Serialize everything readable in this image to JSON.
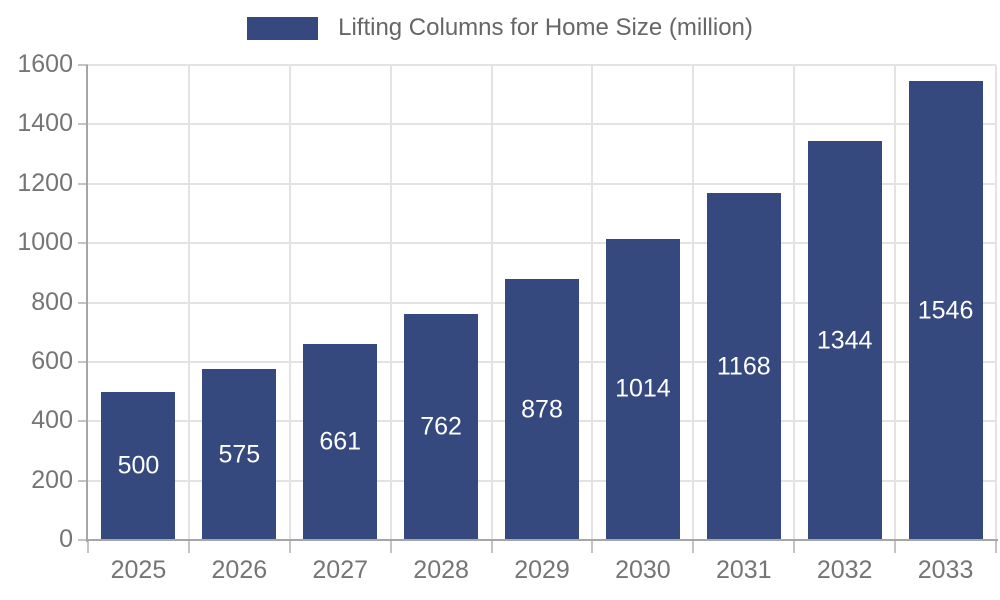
{
  "chart_data": {
    "type": "bar",
    "title": "Lifting Columns for Home Size (million)",
    "legend_entries": [
      "Lifting Columns for Home Size (million)"
    ],
    "legend_position": "top-center",
    "categories": [
      "2025",
      "2026",
      "2027",
      "2028",
      "2029",
      "2030",
      "2031",
      "2032",
      "2033"
    ],
    "values": [
      500,
      575,
      661,
      762,
      878,
      1014,
      1168,
      1344,
      1546
    ],
    "data_label_position": "inside-center",
    "xlabel": "",
    "ylabel": "",
    "ylim": [
      0,
      1600
    ],
    "y_ticks": [
      0,
      200,
      400,
      600,
      800,
      1000,
      1200,
      1400,
      1600
    ],
    "grid": true,
    "colors": {
      "bar": "#36497F",
      "value_label": "#FFFFFF",
      "axis_line": "#A6A6A6",
      "tick_mark": "#C4C4C4",
      "tick_label": "#757575",
      "legend_text": "#666666",
      "grid_line": "#E3E3E3",
      "background": "#FFFFFF"
    }
  }
}
